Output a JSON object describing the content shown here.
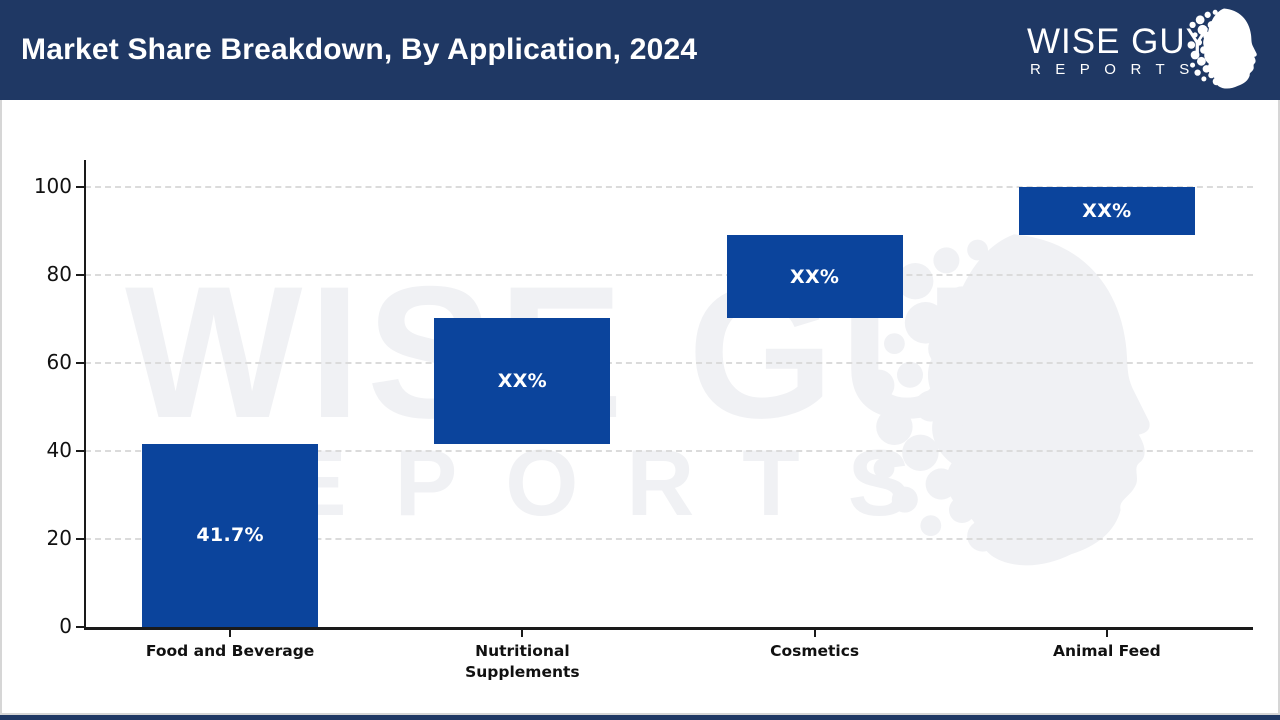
{
  "header": {
    "title": "Market Share Breakdown, By Application, 2024",
    "logo": {
      "line1": "WISE GUY",
      "line2": "REPORTS"
    }
  },
  "watermark": {
    "line1": "WISE GUY",
    "line2": "REPORTS"
  },
  "colors": {
    "header_bg": "#1f3864",
    "bar": "#0b449c",
    "bar_label": "#ffffff",
    "grid": "#dbdbdb",
    "axis": "#1a1a1a",
    "watermark": "#f0f1f4",
    "footer_strip": "#1f3864"
  },
  "chart_data": {
    "type": "bar",
    "subtype": "waterfall-stacked-percentage",
    "title": "Market Share Breakdown, By Application, 2024",
    "categories": [
      "Food and Beverage",
      "Nutritional Supplements",
      "Cosmetics",
      "Animal Feed"
    ],
    "category_lines": [
      [
        "Food and Beverage"
      ],
      [
        "Nutritional",
        "Supplements"
      ],
      [
        "Cosmetics"
      ],
      [
        "Animal Feed"
      ]
    ],
    "segments": [
      {
        "category": "Food and Beverage",
        "start": 0,
        "end": 41.7,
        "label": "41.7%"
      },
      {
        "category": "Nutritional Supplements",
        "start": 41.7,
        "end": 70.2,
        "label": "XX%"
      },
      {
        "category": "Cosmetics",
        "start": 70.2,
        "end": 89.0,
        "label": "XX%"
      },
      {
        "category": "Animal Feed",
        "start": 89.0,
        "end": 100,
        "label": "XX%"
      }
    ],
    "xlabel": "",
    "ylabel": "",
    "ylim": [
      0,
      100
    ],
    "yticks": [
      0,
      20,
      40,
      60,
      80,
      100
    ],
    "grid": "horizontal-dashed",
    "legend": "none"
  }
}
